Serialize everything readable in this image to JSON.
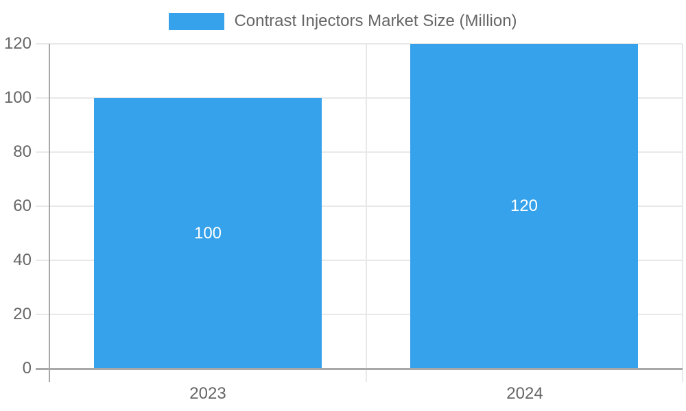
{
  "chart_data": {
    "type": "bar",
    "categories": [
      "2023",
      "2024"
    ],
    "series": [
      {
        "name": "Contrast Injectors Market Size (Million)",
        "values": [
          100,
          120
        ],
        "color": "#36A2EB"
      }
    ],
    "data_labels": {
      "values": [
        "100",
        "120"
      ],
      "color": "#ffffff",
      "position": "center"
    },
    "yticks": [
      "0",
      "20",
      "40",
      "60",
      "80",
      "100",
      "120"
    ],
    "ytick_values": [
      0,
      20,
      40,
      60,
      80,
      100,
      120
    ],
    "ylim": [
      0,
      120
    ],
    "xlabel": "",
    "ylabel": "",
    "title": "",
    "legend": {
      "position": "top",
      "label": "Contrast Injectors Market Size (Million)"
    },
    "grid": "on",
    "colors": {
      "grid_line": "#e8e8e8",
      "axis_line": "#a8a8a8",
      "tick_text": "#666666",
      "background": "#ffffff"
    }
  }
}
